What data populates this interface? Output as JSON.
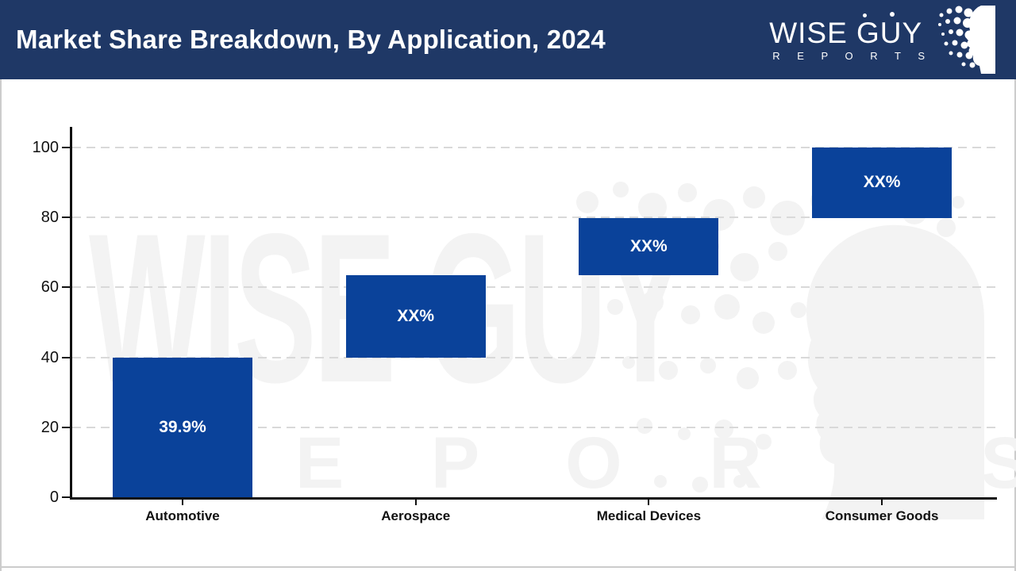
{
  "header": {
    "title": "Market Share Breakdown, By Application, 2024",
    "logo": {
      "line1": "WISE GUY",
      "line2": "R E P O R T S"
    }
  },
  "watermark": {
    "line1": "WISE GUY",
    "line2": "R E P O R T S"
  },
  "colors": {
    "header_bg": "#1f3866",
    "bar": "#0a429a",
    "bar_label": "#ffffff",
    "grid": "#d9d9d9",
    "axis": "#111111",
    "watermark": "#f3f3f3"
  },
  "chart_data": {
    "type": "bar",
    "subtype": "waterfall",
    "title": "Market Share Breakdown, By Application, 2024",
    "categories": [
      "Automotive",
      "Aerospace",
      "Medical Devices",
      "Consumer Goods"
    ],
    "segments": [
      {
        "category": "Automotive",
        "start": 0,
        "end": 39.9,
        "label": "39.9%"
      },
      {
        "category": "Aerospace",
        "start": 39.9,
        "end": 63.5,
        "label": "XX%"
      },
      {
        "category": "Medical Devices",
        "start": 63.5,
        "end": 79.9,
        "label": "XX%"
      },
      {
        "category": "Consumer Goods",
        "start": 79.9,
        "end": 100,
        "label": "XX%"
      }
    ],
    "yticks": [
      0,
      20,
      40,
      60,
      80,
      100
    ],
    "ylim": [
      0,
      105
    ],
    "xlabel": "",
    "ylabel": "",
    "grid": "horizontal-dashed",
    "legend": "none"
  }
}
